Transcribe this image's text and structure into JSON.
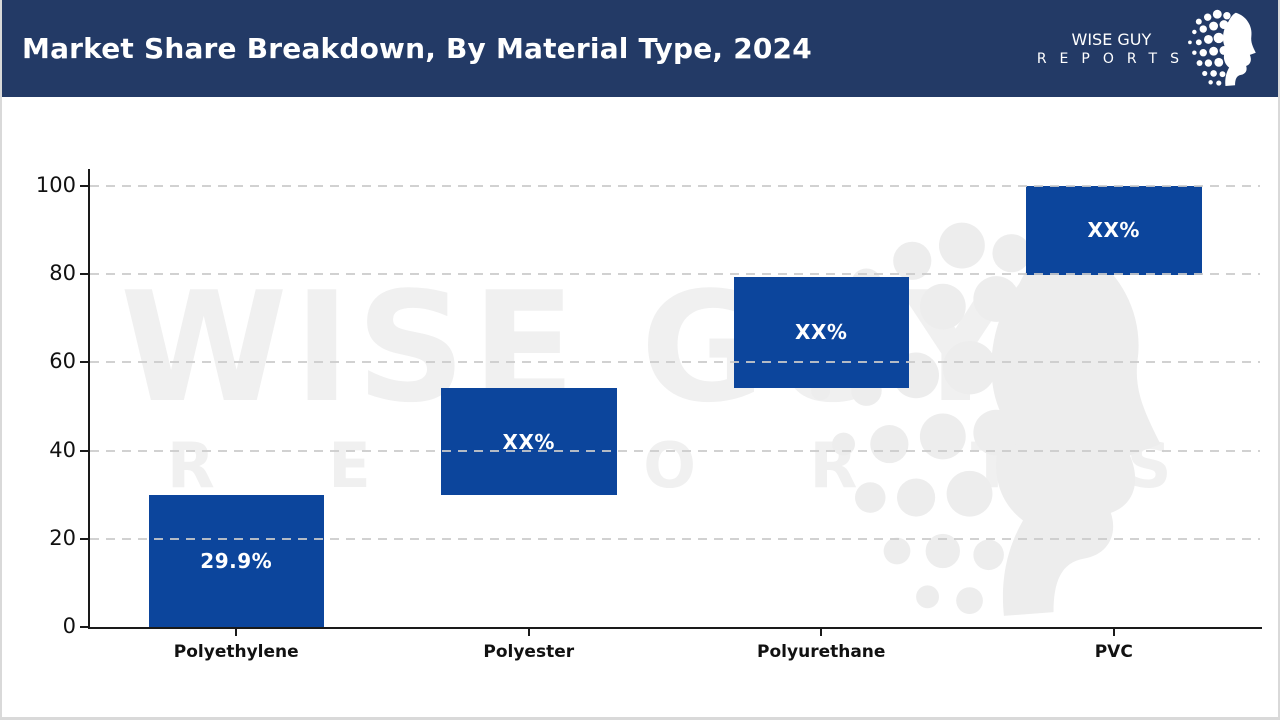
{
  "header": {
    "title": "Market Share Breakdown, By Material Type, 2024",
    "bg_color": "#233A66",
    "logo": {
      "line1": "WISE GUY",
      "line2": "REPORTS"
    }
  },
  "watermark": {
    "line1": "WISE GUY",
    "line2": "R E P O R T S"
  },
  "chart_data": {
    "type": "bar",
    "subtype": "floating-waterfall",
    "title": "Market Share Breakdown, By Material Type, 2024",
    "categories": [
      "Polyethylene",
      "Polyester",
      "Polyurethane",
      "PVC"
    ],
    "segments": [
      {
        "category": "Polyethylene",
        "start": 0,
        "end": 29.9,
        "label": "29.9%"
      },
      {
        "category": "Polyester",
        "start": 29.9,
        "end": 54.2,
        "label": "XX%"
      },
      {
        "category": "Polyurethane",
        "start": 54.3,
        "end": 79.4,
        "label": "XX%"
      },
      {
        "category": "PVC",
        "start": 79.9,
        "end": 100,
        "label": "XX%"
      }
    ],
    "xlabel": "",
    "ylabel": "",
    "ylim": [
      0,
      100
    ],
    "yticks": [
      0,
      20,
      40,
      60,
      80,
      100
    ],
    "grid": true,
    "grid_style": "dashed",
    "legend": "none",
    "bar_color": "#0C459C",
    "bar_label_color": "#ffffff"
  }
}
